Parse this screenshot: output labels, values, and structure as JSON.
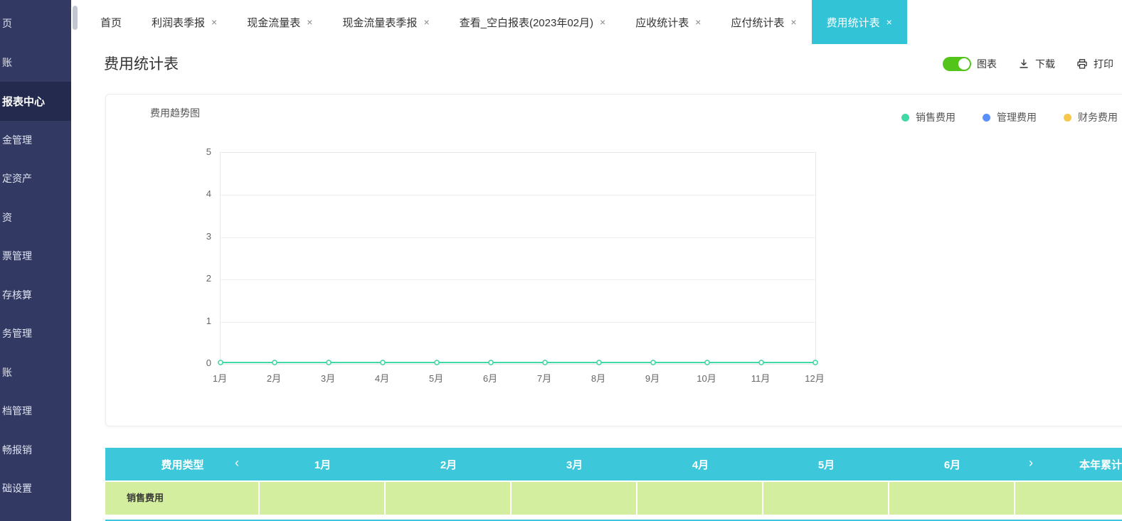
{
  "ui": {
    "close_icon": "×"
  },
  "sidebar": {
    "items": [
      {
        "label": "页"
      },
      {
        "label": "账"
      },
      {
        "label": "报表中心",
        "active": true
      },
      {
        "label": "金管理"
      },
      {
        "label": "定资产"
      },
      {
        "label": "资"
      },
      {
        "label": "票管理"
      },
      {
        "label": "存核算"
      },
      {
        "label": "务管理"
      },
      {
        "label": "账"
      },
      {
        "label": "档管理"
      },
      {
        "label": "畅报销"
      },
      {
        "label": "础设置"
      }
    ]
  },
  "tabs": [
    {
      "label": "首页",
      "closable": false
    },
    {
      "label": "利润表季报",
      "closable": true
    },
    {
      "label": "现金流量表",
      "closable": true
    },
    {
      "label": "现金流量表季报",
      "closable": true
    },
    {
      "label": "查看_空白报表(2023年02月)",
      "closable": true
    },
    {
      "label": "应收统计表",
      "closable": true
    },
    {
      "label": "应付统计表",
      "closable": true
    },
    {
      "label": "费用统计表",
      "closable": true,
      "active": true
    }
  ],
  "page": {
    "title": "费用统计表"
  },
  "toolbar": {
    "chart_toggle_label": "图表",
    "toggle_on": true,
    "download_label": "下载",
    "print_label": "打印"
  },
  "chart_data": {
    "type": "line",
    "title": "费用趋势图",
    "categories": [
      "1月",
      "2月",
      "3月",
      "4月",
      "5月",
      "6月",
      "7月",
      "8月",
      "9月",
      "10月",
      "11月",
      "12月"
    ],
    "series": [
      {
        "name": "销售费用",
        "color": "#41d9a6",
        "values": [
          0,
          0,
          0,
          0,
          0,
          0,
          0,
          0,
          0,
          0,
          0,
          0
        ]
      },
      {
        "name": "管理费用",
        "color": "#5b8ff9",
        "values": [
          0,
          0,
          0,
          0,
          0,
          0,
          0,
          0,
          0,
          0,
          0,
          0
        ]
      },
      {
        "name": "财务费用",
        "color": "#f5c84c",
        "values": [
          0,
          0,
          0,
          0,
          0,
          0,
          0,
          0,
          0,
          0,
          0,
          0
        ]
      }
    ],
    "ylim": [
      0,
      5
    ],
    "ytick_step": 1,
    "grid": true,
    "legend_position": "top-right"
  },
  "table": {
    "type_header": "费用类型",
    "nav_prev": "‹",
    "nav_next": "›",
    "month_columns": [
      "1月",
      "2月",
      "3月",
      "4月",
      "5月",
      "6月"
    ],
    "total_header": "本年累计",
    "rows": [
      {
        "type": "销售费用",
        "values": [
          "",
          "",
          "",
          "",
          "",
          ""
        ],
        "total": ""
      }
    ]
  }
}
